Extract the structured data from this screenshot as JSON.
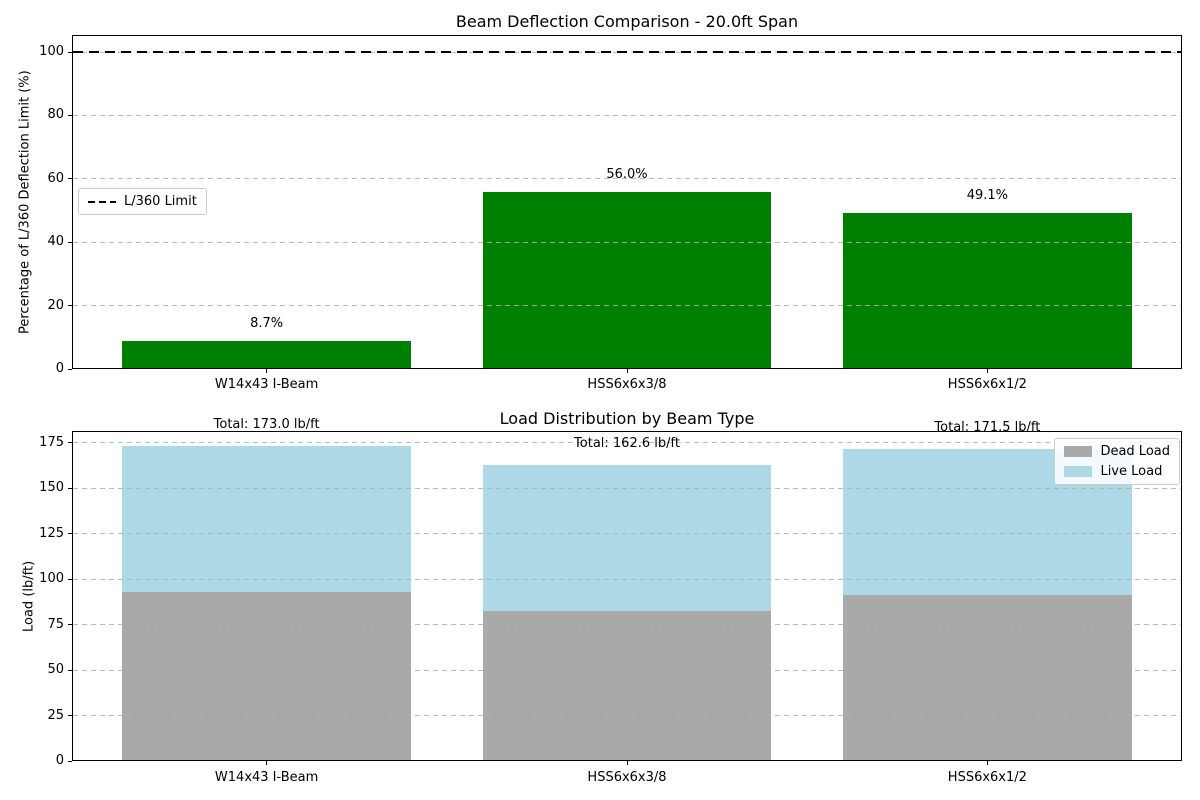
{
  "chart_data": [
    {
      "type": "bar",
      "title": "Beam Deflection Comparison - 20.0ft Span",
      "categories": [
        "W14x43 I-Beam",
        "HSS6x6x3/8",
        "HSS6x6x1/2"
      ],
      "values": [
        8.7,
        56.0,
        49.1
      ],
      "bar_labels": [
        "8.7%",
        "56.0%",
        "49.1%"
      ],
      "bar_color": "#008000",
      "xlabel": "",
      "ylabel": "Percentage of L/360 Deflection Limit (%)",
      "ylim": [
        0,
        105.4
      ],
      "yticks": [
        0,
        20,
        40,
        60,
        80,
        100
      ],
      "grid": "horizontal-dashed",
      "reference_line": {
        "value": 100,
        "label": "L/360 Limit",
        "color": "#000000",
        "style": "dashed"
      },
      "legend": {
        "position": "center-left",
        "entries": [
          {
            "label": "L/360 Limit",
            "swatch": "dashed-line",
            "color": "#000000"
          }
        ]
      }
    },
    {
      "type": "stacked-bar",
      "title": "Load Distribution by Beam Type",
      "categories": [
        "W14x43 I-Beam",
        "HSS6x6x3/8",
        "HSS6x6x1/2"
      ],
      "series": [
        {
          "name": "Dead Load",
          "color": "#a9a9a9",
          "values": [
            93.0,
            82.6,
            91.5
          ]
        },
        {
          "name": "Live Load",
          "color": "#add8e6",
          "values": [
            80.0,
            80.0,
            80.0
          ]
        }
      ],
      "totals": [
        173.0,
        162.6,
        171.5
      ],
      "total_labels": [
        "Total: 173.0 lb/ft",
        "Total: 162.6 lb/ft",
        "Total: 171.5 lb/ft"
      ],
      "xlabel": "",
      "ylabel": "Load (lb/ft)",
      "ylim": [
        0,
        181.4
      ],
      "yticks": [
        0,
        25,
        50,
        75,
        100,
        125,
        150,
        175
      ],
      "grid": "horizontal-dashed",
      "legend": {
        "position": "upper-right",
        "entries": [
          {
            "label": "Dead Load",
            "swatch": "patch",
            "color": "#a9a9a9"
          },
          {
            "label": "Live Load",
            "swatch": "patch",
            "color": "#add8e6"
          }
        ]
      }
    }
  ],
  "figure": {
    "background": "#ffffff"
  }
}
